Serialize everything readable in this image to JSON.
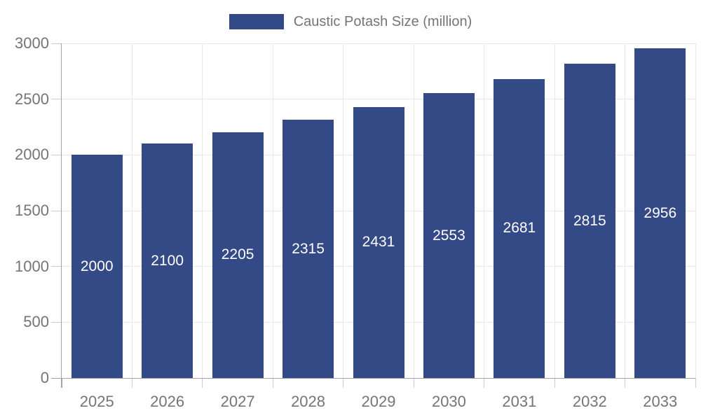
{
  "legend": {
    "label": "Caustic Potash Size (million)"
  },
  "colors": {
    "bar": "#344a86",
    "bar_label": "#ffffff",
    "axis_text": "#757575",
    "legend_text": "#757575",
    "grid": "#e8e8e8",
    "axis_line": "#a3a3a3",
    "tick": "#cccccc",
    "background": "#ffffff"
  },
  "chart_data": {
    "type": "bar",
    "title": "Caustic Potash Size (million)",
    "series_name": "Caustic Potash Size (million)",
    "categories": [
      "2025",
      "2026",
      "2027",
      "2028",
      "2029",
      "2030",
      "2031",
      "2032",
      "2033"
    ],
    "values": [
      2000,
      2100,
      2205,
      2315,
      2431,
      2553,
      2681,
      2815,
      2956
    ],
    "xlabel": "",
    "ylabel": "",
    "ylim": [
      0,
      3000
    ],
    "yticks": [
      0,
      500,
      1000,
      1500,
      2000,
      2500,
      3000
    ],
    "grid": true,
    "legend_position": "top",
    "value_labels": "inside-center"
  }
}
